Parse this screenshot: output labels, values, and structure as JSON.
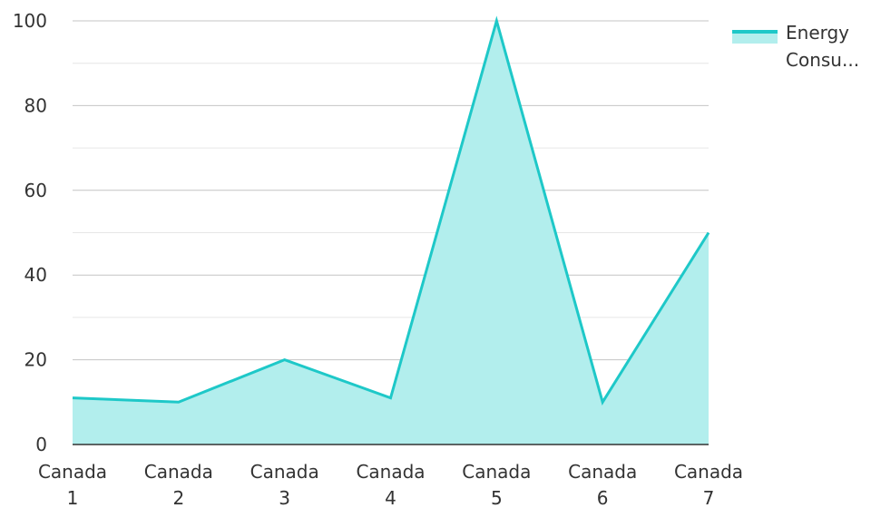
{
  "chart_data": {
    "type": "area",
    "categories": [
      "Canada 1",
      "Canada 2",
      "Canada 3",
      "Canada 4",
      "Canada 5",
      "Canada 6",
      "Canada 7"
    ],
    "category_lines": [
      [
        "Canada",
        "1"
      ],
      [
        "Canada",
        "2"
      ],
      [
        "Canada",
        "3"
      ],
      [
        "Canada",
        "4"
      ],
      [
        "Canada",
        "5"
      ],
      [
        "Canada",
        "6"
      ],
      [
        "Canada",
        "7"
      ]
    ],
    "series": [
      {
        "name": "Energy Consu...",
        "name_lines": [
          "Energy",
          "Consu..."
        ],
        "values": [
          11,
          10,
          20,
          11,
          100,
          10,
          50
        ],
        "color": "#1ec8c8",
        "fill": "#b2eeed"
      }
    ],
    "ylim": [
      0,
      100
    ],
    "yticks": [
      0,
      20,
      40,
      60,
      80,
      100
    ],
    "minor_grid": true,
    "grid": true,
    "legend_position": "top-right",
    "title": "",
    "xlabel": "",
    "ylabel": ""
  }
}
